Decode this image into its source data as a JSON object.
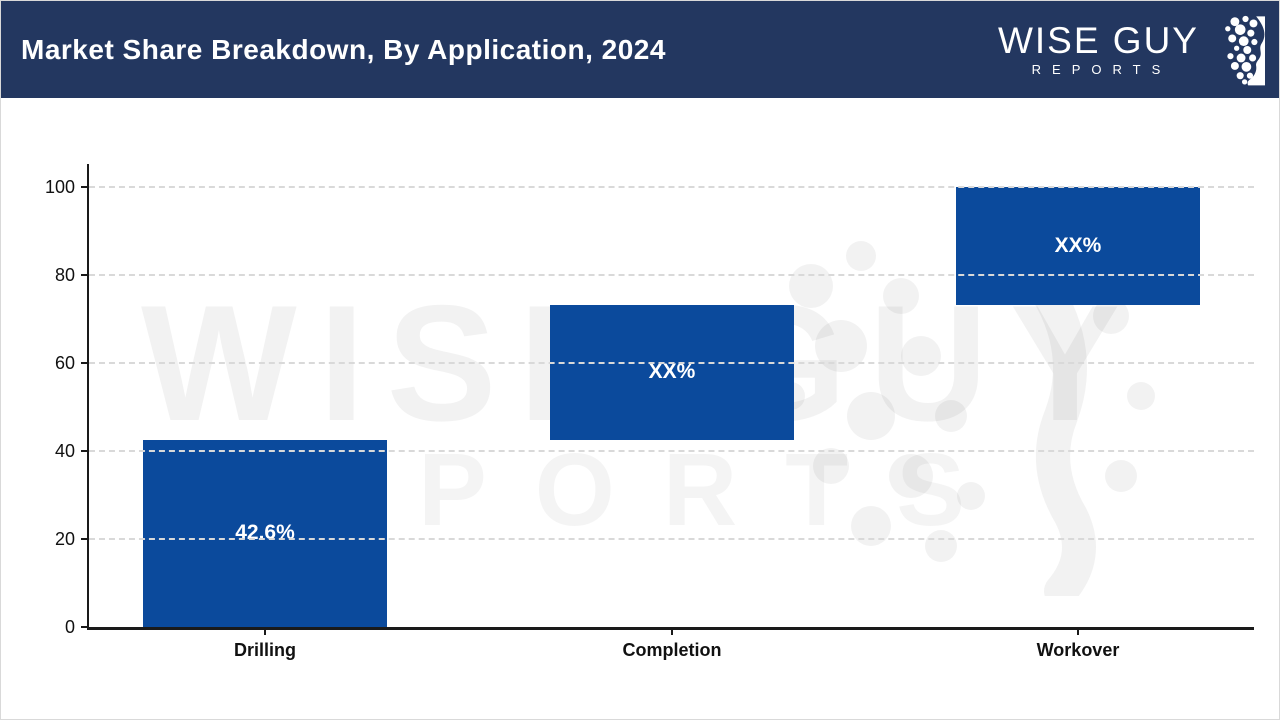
{
  "page": {
    "bg": "#ffffff",
    "border_color": "#d9d9d9"
  },
  "header": {
    "bg_color": "#233760",
    "title": "Market Share Breakdown, By Application, 2024",
    "logo": {
      "line1": "WISE GUY",
      "line2": "REPORTS",
      "face_icon": "face-dots-icon"
    }
  },
  "watermark": {
    "line1": "WISE GUY",
    "line2": "REPORTS",
    "face_icon": "face-dots-watermark-icon"
  },
  "chart_data": {
    "type": "bar",
    "variant": "waterfall",
    "title": "Market Share Breakdown, By Application, 2024",
    "categories": [
      "Drilling",
      "Completion",
      "Workover"
    ],
    "series": [
      {
        "name": "Market Share",
        "segments": [
          {
            "category": "Drilling",
            "start": 0,
            "end": 42.6,
            "label": "42.6%"
          },
          {
            "category": "Completion",
            "start": 42.6,
            "end": 73.2,
            "label": "XX%"
          },
          {
            "category": "Workover",
            "start": 73.2,
            "end": 100,
            "label": "XX%"
          }
        ]
      }
    ],
    "bar_color": "#0b4a9c",
    "bar_label_color": "#ffffff",
    "xlabel": "",
    "ylabel": "",
    "yticks": [
      0,
      20,
      40,
      60,
      80,
      100
    ],
    "ylim": [
      0,
      105.2
    ],
    "grid": {
      "horizontal": true,
      "style": "dashed",
      "color": "#d9d9d9"
    },
    "legend": "none",
    "axis_color": "#1a1a1a",
    "tick_label_color": "#111111"
  }
}
